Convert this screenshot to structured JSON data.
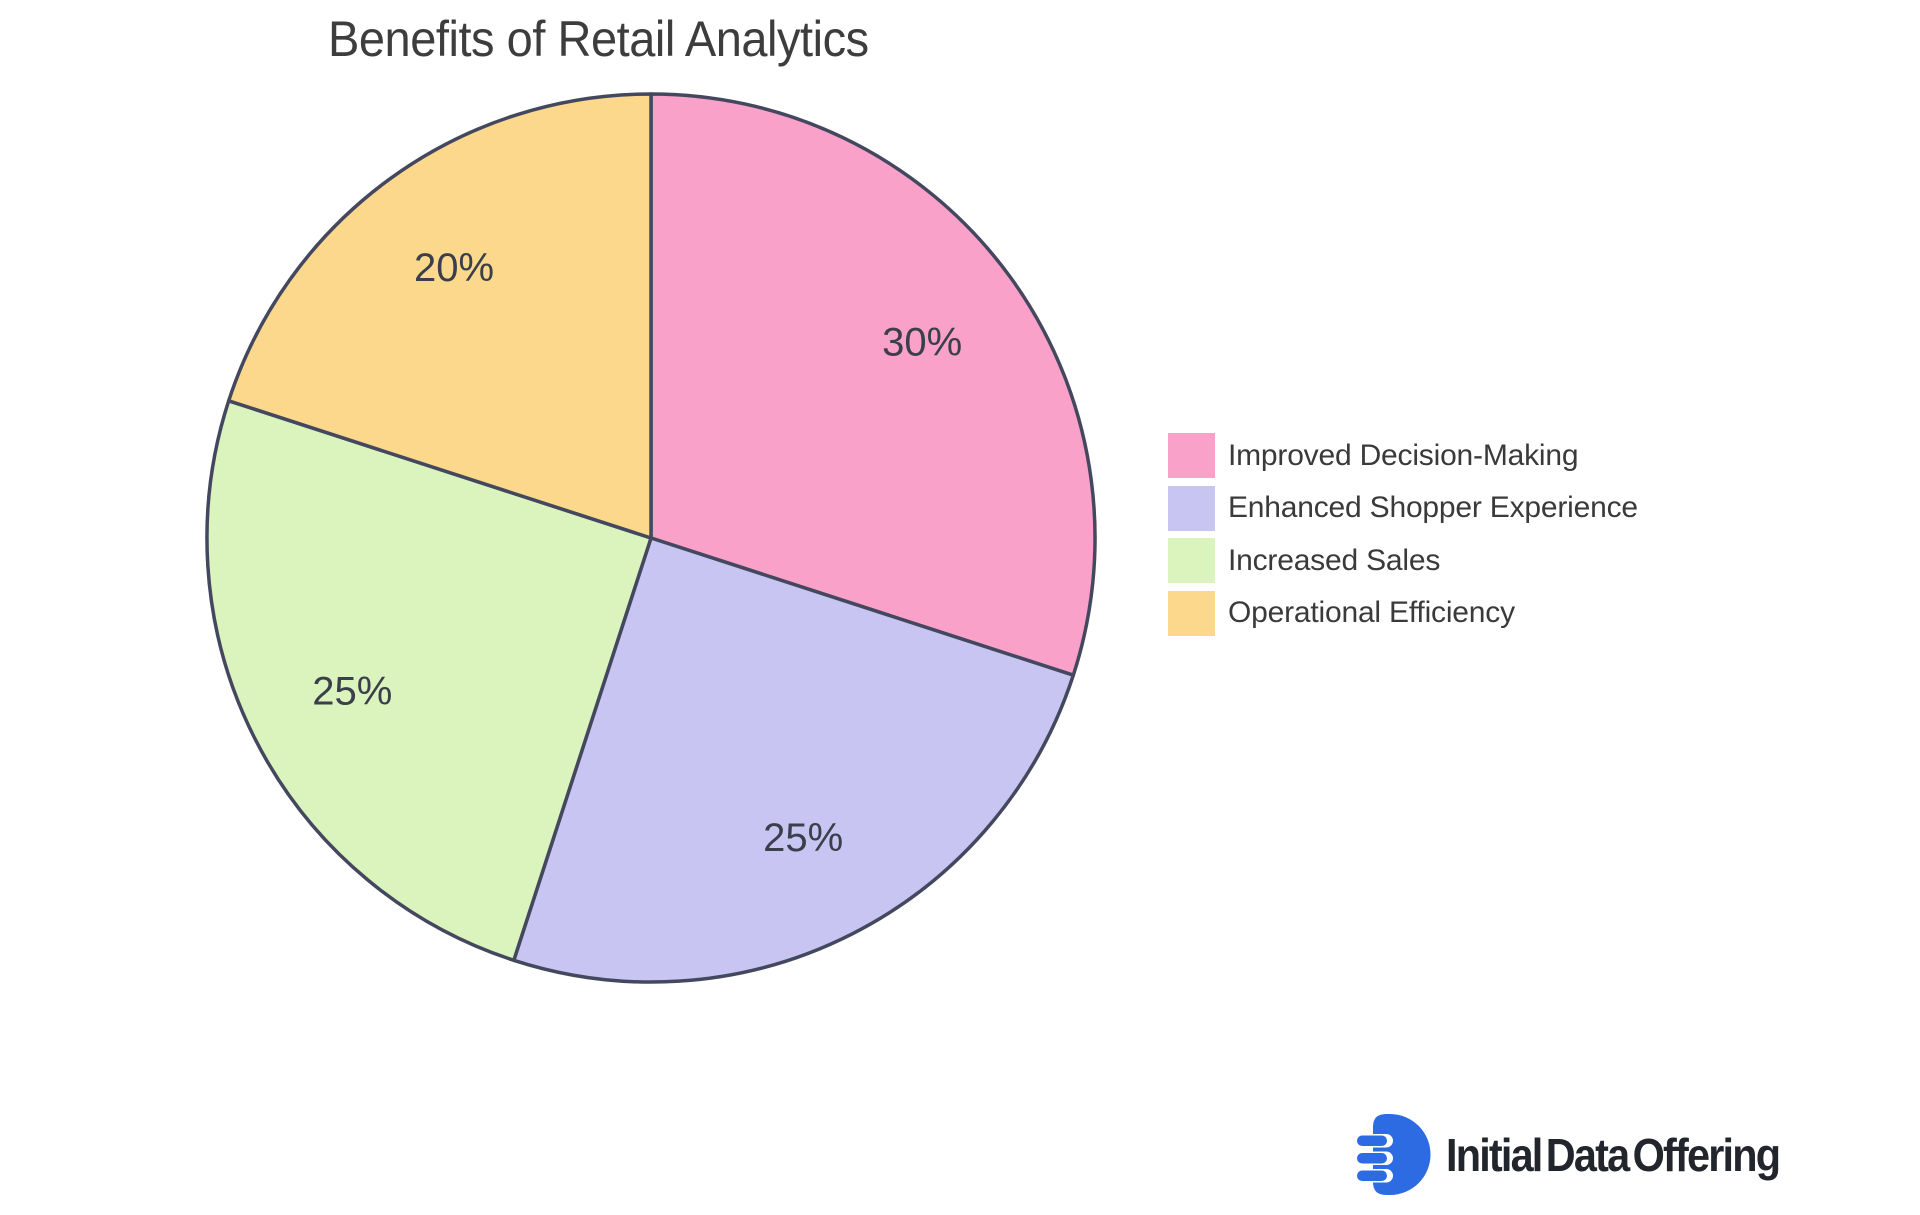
{
  "title": {
    "text": "Benefits of Retail Analytics"
  },
  "chart_data": {
    "type": "pie",
    "title": "Benefits of Retail Analytics",
    "labels": [
      "Improved Decision-Making",
      "Enhanced Shopper Experience",
      "Increased Sales",
      "Operational Efficiency"
    ],
    "values": [
      30,
      25,
      25,
      20
    ],
    "percent_labels": [
      "30%",
      "25%",
      "25%",
      "20%"
    ],
    "colors": [
      "#F9A1C8",
      "#C8C5F2",
      "#DBF3BC",
      "#FBD88C"
    ],
    "start_angle_deg": 0,
    "direction": "clockwise",
    "wedge_edge_color": "#44485F",
    "wedge_edge_width": 3.5,
    "label_color": "#3A3F4B",
    "label_font_size": 40,
    "legend_position": "right",
    "legend_text_color": "#3a3a3a"
  },
  "logo": {
    "text": "Initial Data Offering",
    "icon": "initial-data-offering-logo",
    "icon_color": "#2D6BE3",
    "text_color": "#22252C"
  }
}
